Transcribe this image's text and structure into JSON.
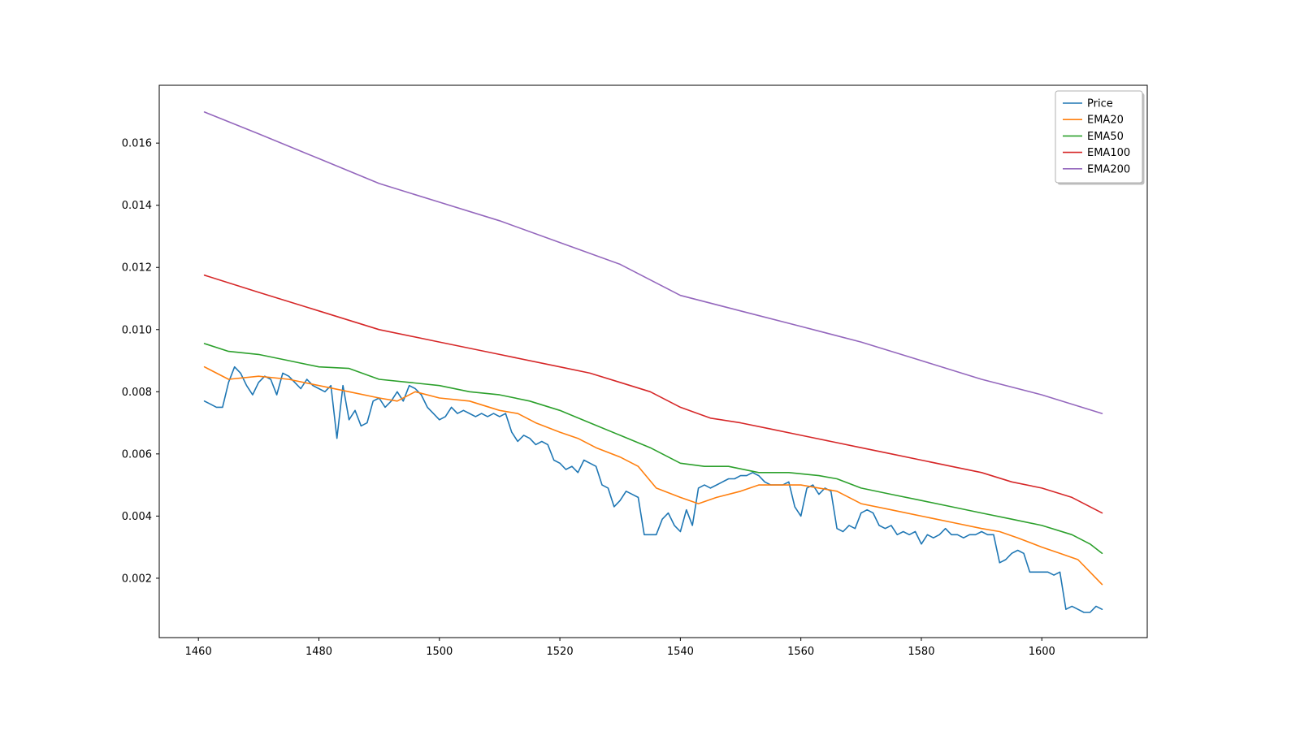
{
  "figure": {
    "background": "#ffffff"
  },
  "chart_data": {
    "type": "line",
    "title": "",
    "xlabel": "",
    "ylabel": "",
    "grid": false,
    "xlim": [
      1453.5,
      1617.5
    ],
    "ylim": [
      9e-05,
      0.01786
    ],
    "x_ticks": [
      1460,
      1480,
      1500,
      1520,
      1540,
      1560,
      1580,
      1600
    ],
    "x_tick_labels": [
      "1460",
      "1480",
      "1500",
      "1520",
      "1540",
      "1560",
      "1580",
      "1600"
    ],
    "y_ticks": [
      0.002,
      0.004,
      0.006,
      0.008,
      0.01,
      0.012,
      0.014,
      0.016
    ],
    "y_tick_labels": [
      "0.002",
      "0.004",
      "0.006",
      "0.008",
      "0.010",
      "0.012",
      "0.014",
      "0.016"
    ],
    "legend": {
      "position": "upper right",
      "background": "#ffffff",
      "border_color": "#b0b0b0",
      "shadow_color": "#bfbfbf",
      "entries": [
        "Price",
        "EMA20",
        "EMA50",
        "EMA100",
        "EMA200"
      ]
    },
    "axis_color": "#000000",
    "series": [
      {
        "name": "Price",
        "color": "#1f77b4",
        "x_start": 1461,
        "x_step": 1,
        "values": [
          0.0077,
          0.0076,
          0.0075,
          0.0075,
          0.0083,
          0.0088,
          0.0086,
          0.0082,
          0.0079,
          0.0083,
          0.0085,
          0.0084,
          0.0079,
          0.0086,
          0.0085,
          0.0083,
          0.0081,
          0.0084,
          0.0082,
          0.0081,
          0.008,
          0.0082,
          0.0065,
          0.0082,
          0.0071,
          0.0074,
          0.0069,
          0.007,
          0.0077,
          0.0078,
          0.0075,
          0.0077,
          0.008,
          0.0077,
          0.0082,
          0.0081,
          0.0079,
          0.0075,
          0.0073,
          0.0071,
          0.0072,
          0.0075,
          0.0073,
          0.0074,
          0.0073,
          0.0072,
          0.0073,
          0.0072,
          0.0073,
          0.0072,
          0.0073,
          0.0067,
          0.0064,
          0.0066,
          0.0065,
          0.0063,
          0.0064,
          0.0063,
          0.0058,
          0.0057,
          0.0055,
          0.0056,
          0.0054,
          0.0058,
          0.0057,
          0.0056,
          0.005,
          0.0049,
          0.0043,
          0.0045,
          0.0048,
          0.0047,
          0.0046,
          0.0034,
          0.0034,
          0.0034,
          0.0039,
          0.0041,
          0.0037,
          0.0035,
          0.0042,
          0.0037,
          0.0049,
          0.005,
          0.0049,
          0.005,
          0.0051,
          0.0052,
          0.0052,
          0.0053,
          0.0053,
          0.0054,
          0.0053,
          0.0051,
          0.005,
          0.005,
          0.005,
          0.0051,
          0.0043,
          0.004,
          0.0049,
          0.005,
          0.0047,
          0.0049,
          0.0048,
          0.0036,
          0.0035,
          0.0037,
          0.0036,
          0.0041,
          0.0042,
          0.0041,
          0.0037,
          0.0036,
          0.0037,
          0.0034,
          0.0035,
          0.0034,
          0.0035,
          0.0031,
          0.0034,
          0.0033,
          0.0034,
          0.0036,
          0.0034,
          0.0034,
          0.0033,
          0.0034,
          0.0034,
          0.0035,
          0.0034,
          0.0034,
          0.0025,
          0.0026,
          0.0028,
          0.0029,
          0.0028,
          0.0022,
          0.0022,
          0.0022,
          0.0022,
          0.0021,
          0.0022,
          0.001,
          0.0011,
          0.001,
          0.0009,
          0.0009,
          0.0011,
          0.001
        ]
      },
      {
        "name": "EMA20",
        "color": "#ff7f0e",
        "x": [
          1461,
          1465,
          1470,
          1475,
          1480,
          1485,
          1490,
          1493,
          1496,
          1500,
          1505,
          1510,
          1513,
          1516,
          1520,
          1523,
          1526,
          1530,
          1533,
          1536,
          1540,
          1543,
          1546,
          1550,
          1553,
          1556,
          1560,
          1563,
          1566,
          1570,
          1575,
          1580,
          1585,
          1590,
          1593,
          1596,
          1600,
          1603,
          1606,
          1608,
          1610
        ],
        "values": [
          0.0088,
          0.0084,
          0.0085,
          0.0084,
          0.0082,
          0.008,
          0.0078,
          0.0077,
          0.008,
          0.0078,
          0.0077,
          0.0074,
          0.0073,
          0.007,
          0.0067,
          0.0065,
          0.0062,
          0.0059,
          0.0056,
          0.0049,
          0.0046,
          0.0044,
          0.0046,
          0.0048,
          0.005,
          0.005,
          0.005,
          0.0049,
          0.0048,
          0.0044,
          0.0042,
          0.004,
          0.0038,
          0.0036,
          0.0035,
          0.0033,
          0.003,
          0.0028,
          0.0026,
          0.0022,
          0.0018
        ]
      },
      {
        "name": "EMA50",
        "color": "#2ca02c",
        "x": [
          1461,
          1465,
          1470,
          1475,
          1480,
          1485,
          1490,
          1495,
          1500,
          1505,
          1510,
          1515,
          1520,
          1525,
          1530,
          1535,
          1540,
          1544,
          1548,
          1553,
          1558,
          1563,
          1566,
          1570,
          1575,
          1580,
          1585,
          1590,
          1595,
          1600,
          1605,
          1608,
          1610
        ],
        "values": [
          0.00955,
          0.0093,
          0.0092,
          0.009,
          0.0088,
          0.00875,
          0.0084,
          0.0083,
          0.0082,
          0.008,
          0.0079,
          0.0077,
          0.0074,
          0.007,
          0.0066,
          0.0062,
          0.0057,
          0.0056,
          0.0056,
          0.0054,
          0.0054,
          0.0053,
          0.0052,
          0.0049,
          0.0047,
          0.0045,
          0.0043,
          0.0041,
          0.0039,
          0.0037,
          0.0034,
          0.0031,
          0.0028
        ]
      },
      {
        "name": "EMA100",
        "color": "#d62728",
        "x": [
          1461,
          1470,
          1480,
          1490,
          1500,
          1510,
          1520,
          1525,
          1530,
          1535,
          1540,
          1545,
          1550,
          1555,
          1560,
          1565,
          1570,
          1575,
          1580,
          1585,
          1590,
          1595,
          1600,
          1605,
          1610
        ],
        "values": [
          0.01175,
          0.0112,
          0.0106,
          0.01,
          0.0096,
          0.0092,
          0.0088,
          0.0086,
          0.0083,
          0.008,
          0.0075,
          0.00715,
          0.007,
          0.0068,
          0.0066,
          0.0064,
          0.0062,
          0.006,
          0.0058,
          0.0056,
          0.0054,
          0.0051,
          0.0049,
          0.0046,
          0.0041
        ]
      },
      {
        "name": "EMA200",
        "color": "#9467bd",
        "x": [
          1461,
          1470,
          1480,
          1490,
          1500,
          1510,
          1520,
          1530,
          1540,
          1550,
          1560,
          1570,
          1580,
          1590,
          1600,
          1610
        ],
        "values": [
          0.017,
          0.0163,
          0.0155,
          0.0147,
          0.0141,
          0.0135,
          0.0128,
          0.0121,
          0.0111,
          0.0106,
          0.0101,
          0.0096,
          0.009,
          0.0084,
          0.0079,
          0.0073
        ]
      }
    ]
  }
}
